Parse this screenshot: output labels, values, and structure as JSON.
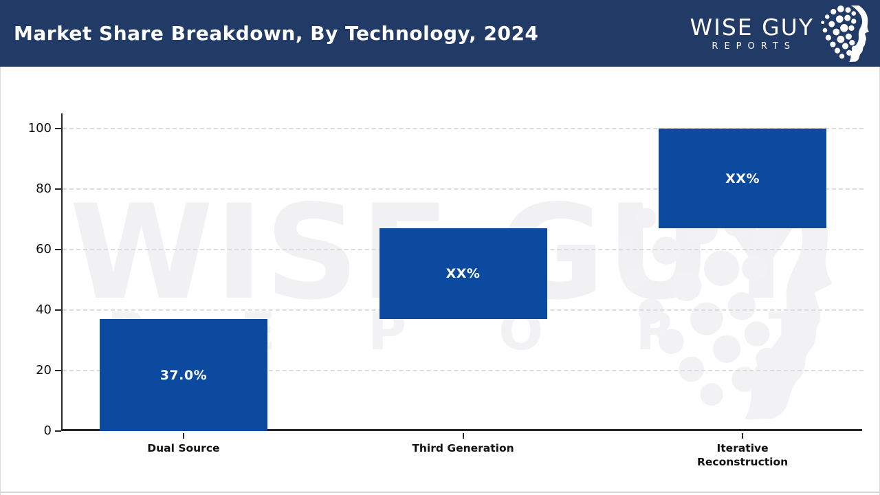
{
  "header": {
    "title": "Market Share Breakdown, By Technology, 2024",
    "logo": {
      "line1": "WISE GUY",
      "line2": "REPORTS"
    },
    "bg_color": "#223a66"
  },
  "watermark": {
    "line1": "WISE GUY",
    "line2": "R E P O R T S"
  },
  "chart_data": {
    "type": "bar",
    "subtype": "waterfall-floating-bars",
    "title": "Market Share Breakdown, By Technology, 2024",
    "xlabel": "",
    "ylabel": "",
    "categories": [
      "Dual Source",
      "Third Generation",
      "Iterative Reconstruction"
    ],
    "segments": [
      {
        "category": "Dual Source",
        "start": 0,
        "end": 37,
        "label": "37.0%"
      },
      {
        "category": "Third Generation",
        "start": 37,
        "end": 67,
        "label": "XX%"
      },
      {
        "category": "Iterative Reconstruction",
        "start": 67,
        "end": 100,
        "label": "XX%"
      }
    ],
    "yticks": [
      0,
      20,
      40,
      60,
      80,
      100
    ],
    "ylim": [
      0,
      105
    ],
    "bar_color": "#0b4a9e",
    "grid": true,
    "grid_style": "dashed",
    "legend": null
  }
}
